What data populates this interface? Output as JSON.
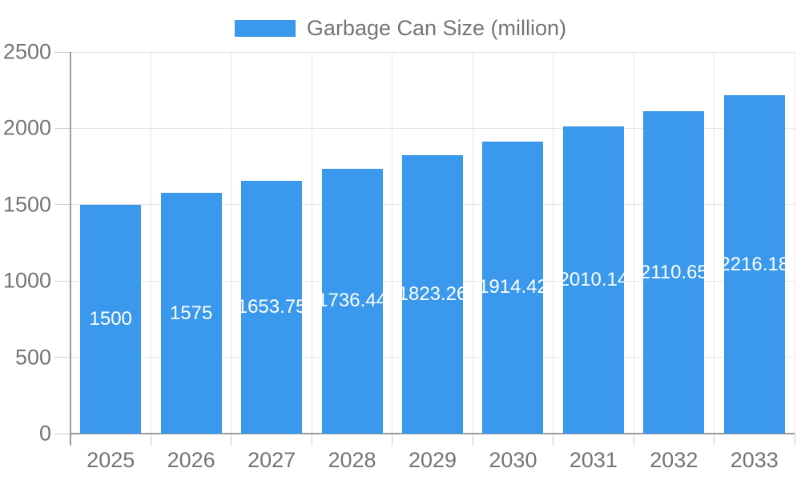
{
  "chart_data": {
    "type": "bar",
    "title": "",
    "legend": "Garbage Can Size (million)",
    "legend_position": "top",
    "categories": [
      "2025",
      "2026",
      "2027",
      "2028",
      "2029",
      "2030",
      "2031",
      "2032",
      "2033"
    ],
    "series": [
      {
        "name": "Garbage Can Size (million)",
        "values": [
          1500,
          1575,
          1653.75,
          1736.44,
          1823.26,
          1914.42,
          2010.14,
          2110.65,
          2216.18
        ],
        "value_labels": [
          "1500",
          "1575",
          "1653.75",
          "1736.44",
          "1823.26",
          "1914.42",
          "2010.14",
          "2110.65",
          "2216.18"
        ]
      }
    ],
    "xlabel": "",
    "ylabel": "",
    "ylim": [
      0,
      2500
    ],
    "y_ticks": [
      0,
      500,
      1000,
      1500,
      2000,
      2500
    ],
    "grid": true,
    "colors": {
      "bar": "#3a99ec",
      "bar_value_text": "#ffffff",
      "axis_text": "#757575",
      "gridline": "#e6e6e6",
      "axis_line": "#999999",
      "tick": "#cccccc",
      "background": "#ffffff"
    }
  }
}
